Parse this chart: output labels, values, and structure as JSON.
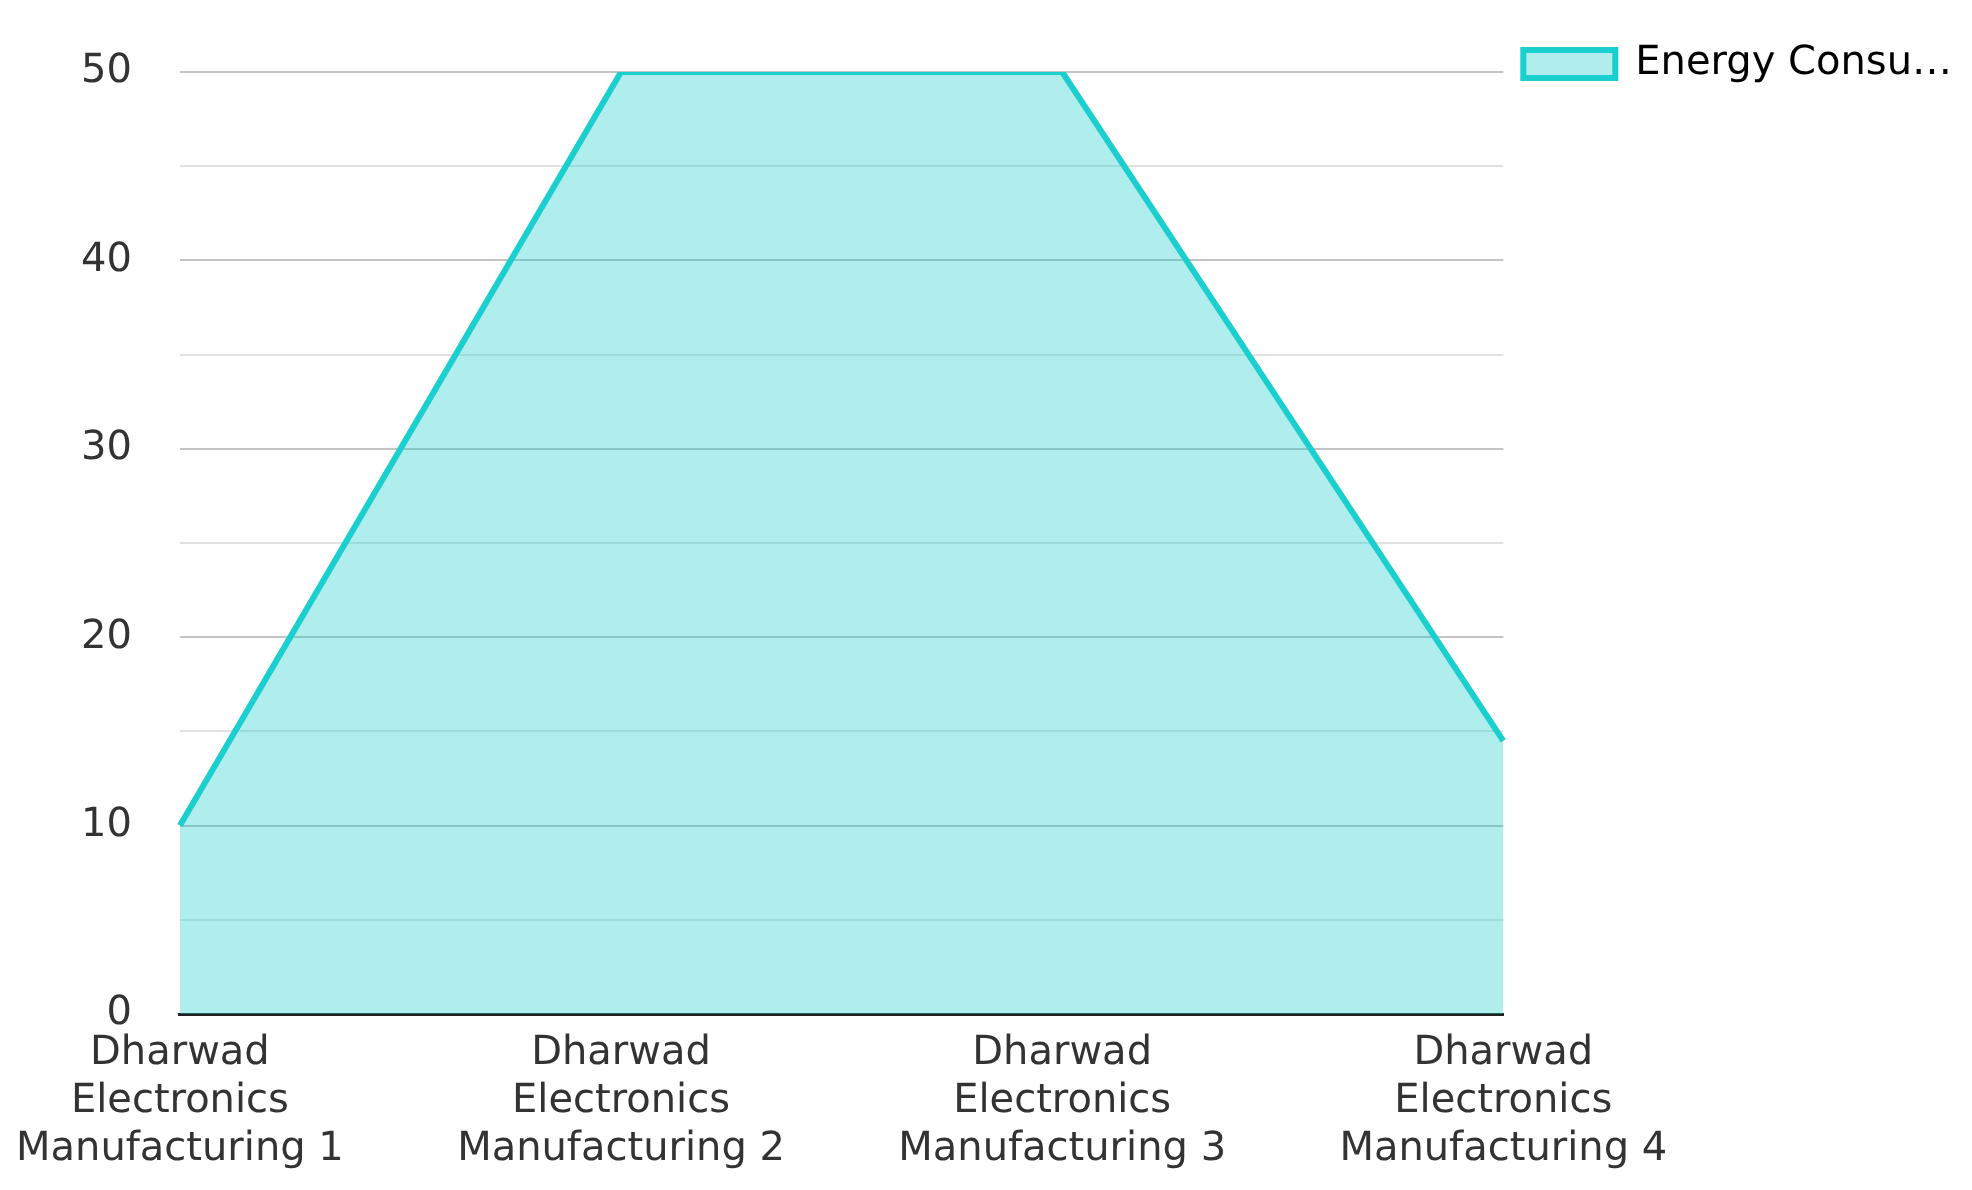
{
  "chart_data": {
    "type": "area",
    "categories": [
      "Dharwad Electronics Manufacturing 1",
      "Dharwad Electronics Manufacturing 2",
      "Dharwad Electronics Manufacturing 3",
      "Dharwad Electronics Manufacturing 4"
    ],
    "series": [
      {
        "name": "Energy Consu…",
        "color": "#1ccfcf",
        "values": [
          10,
          50,
          50,
          14.5
        ]
      }
    ],
    "ylim": [
      0,
      50
    ],
    "yticks": [
      0,
      {
        "value": 5,
        "label": null
      },
      10,
      {
        "value": 15,
        "label": null
      },
      20,
      {
        "value": 25,
        "label": null
      },
      30,
      {
        "value": 35,
        "label": null
      },
      40,
      {
        "value": 45,
        "label": null
      },
      50
    ],
    "grid": "y",
    "legend": "top right"
  }
}
